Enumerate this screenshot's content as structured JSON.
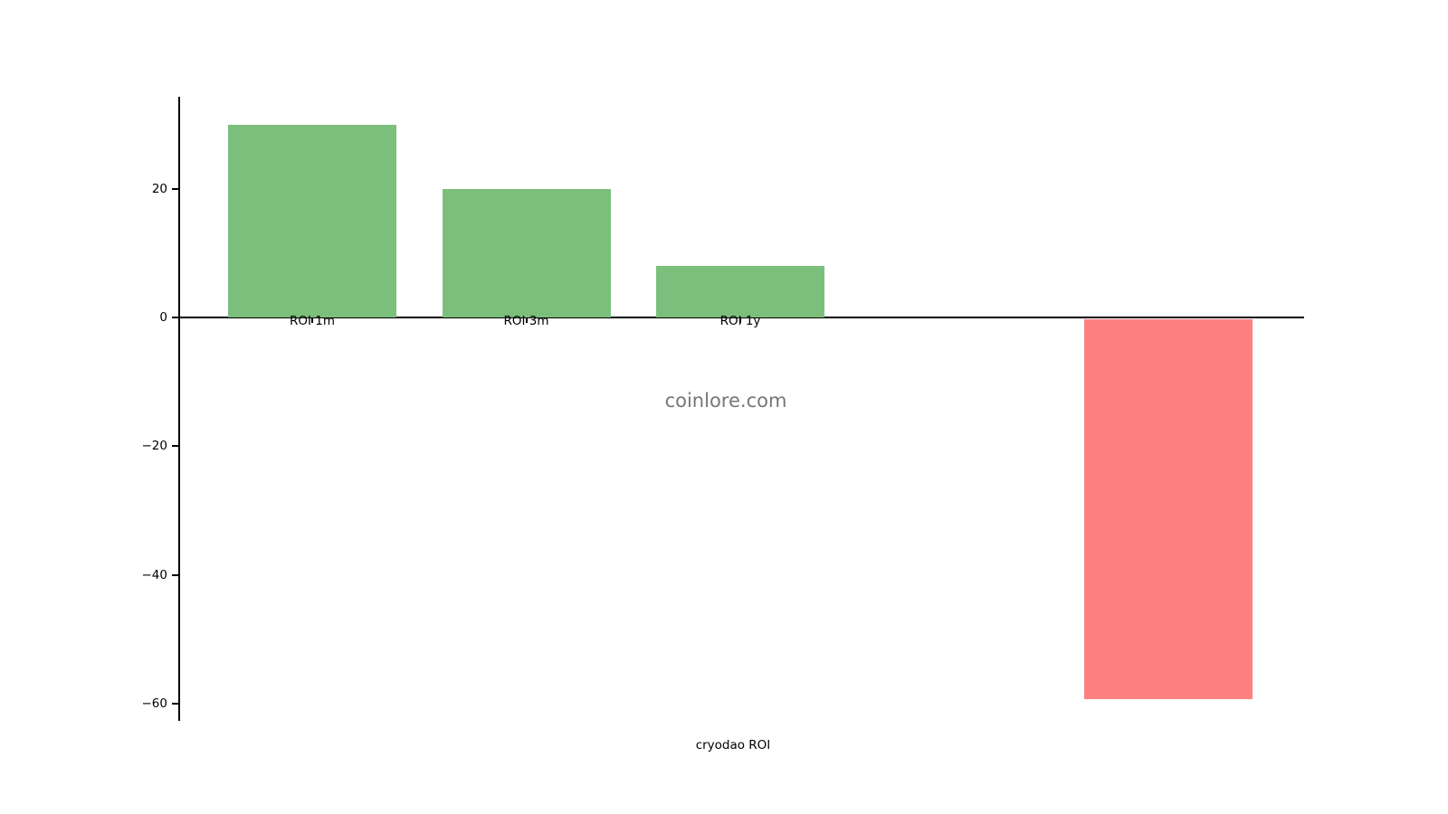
{
  "chart_data": {
    "type": "bar",
    "title": "",
    "xlabel": "cryodao ROI",
    "ylabel": "",
    "watermark": "coinlore.com",
    "categories": [
      "ROI 1m",
      "ROI 3m",
      "ROI 1y",
      ""
    ],
    "values": [
      30,
      20,
      8,
      -59
    ],
    "slots": [
      0,
      1,
      2,
      4
    ],
    "num_slots": 5,
    "yticks": [
      20,
      0,
      -20,
      -40,
      -60
    ],
    "ylim": [
      -62,
      34
    ],
    "grid": false,
    "legend": false,
    "colors": {
      "positive": "#7cbf7c",
      "negative": "#ff8080",
      "axis": "#000000",
      "tick_label": "#000000",
      "watermark": "#777777"
    }
  }
}
